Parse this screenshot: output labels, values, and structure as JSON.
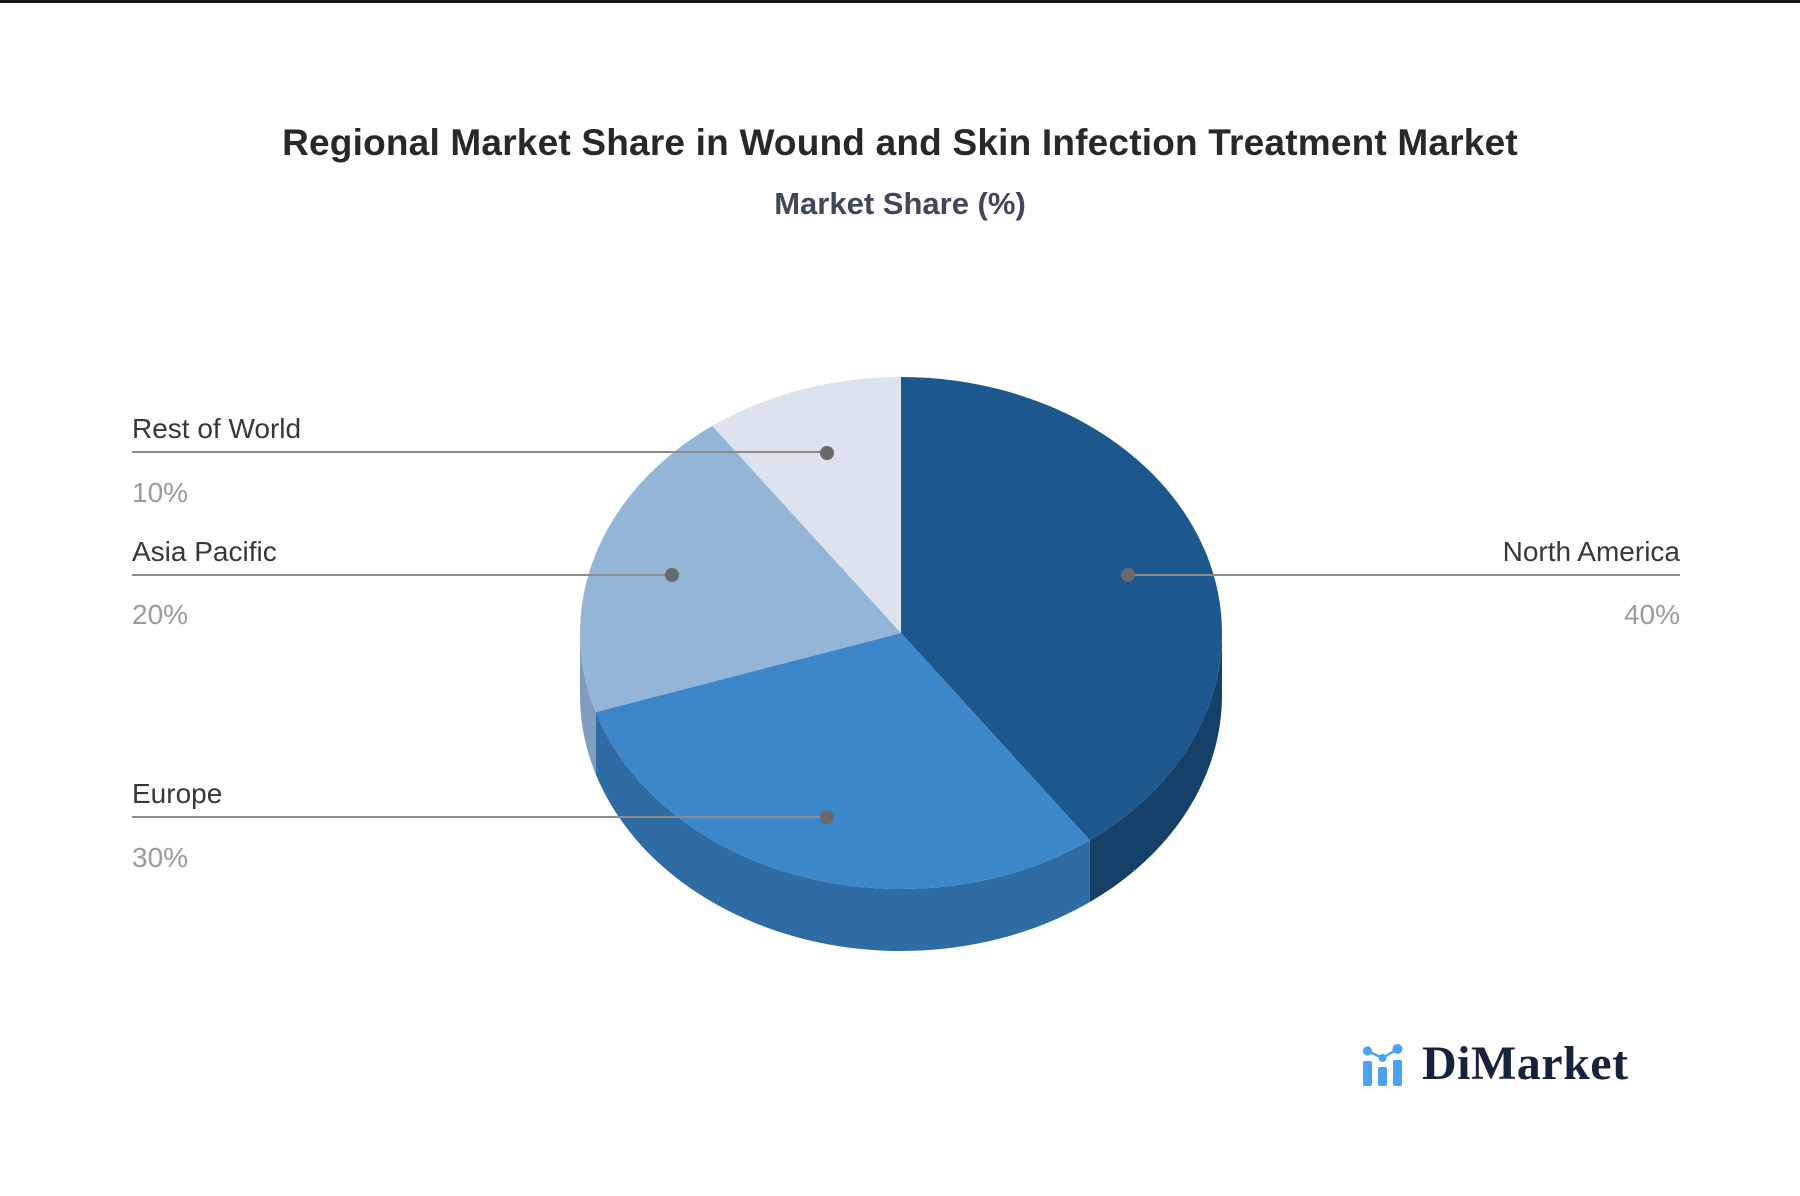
{
  "page": {
    "background": "#ffffff",
    "top_strip_color": "#15191f"
  },
  "chart_data": {
    "type": "pie",
    "style": "3d",
    "title": "Regional Market Share in Wound and Skin Infection Treatment Market",
    "subtitle": "Market Share (%)",
    "unit": "%",
    "start_angle_deg": 0,
    "clockwise": true,
    "legend_position": "callout-labels",
    "label_color": "#37383a",
    "value_color": "#9b9b9b",
    "leader_line_color": "#8c8c8c",
    "slices": [
      {
        "label": "North America",
        "value": 40,
        "display": "40%",
        "color": "#1c578e",
        "side_color": "#154169"
      },
      {
        "label": "Europe",
        "value": 30,
        "display": "30%",
        "color": "#3b87c9",
        "side_color": "#2f6ca3"
      },
      {
        "label": "Asia Pacific",
        "value": 20,
        "display": "20%",
        "color": "#93b5d8",
        "side_color": "#7f9dbf"
      },
      {
        "label": "Rest of World",
        "value": 10,
        "display": "10%",
        "color": "#dde3ee",
        "side_color": "#c3c9d4"
      }
    ]
  },
  "branding": {
    "logo_text": "DiMarket",
    "logo_color": "#4aa2f4",
    "text_color": "#16233a"
  }
}
